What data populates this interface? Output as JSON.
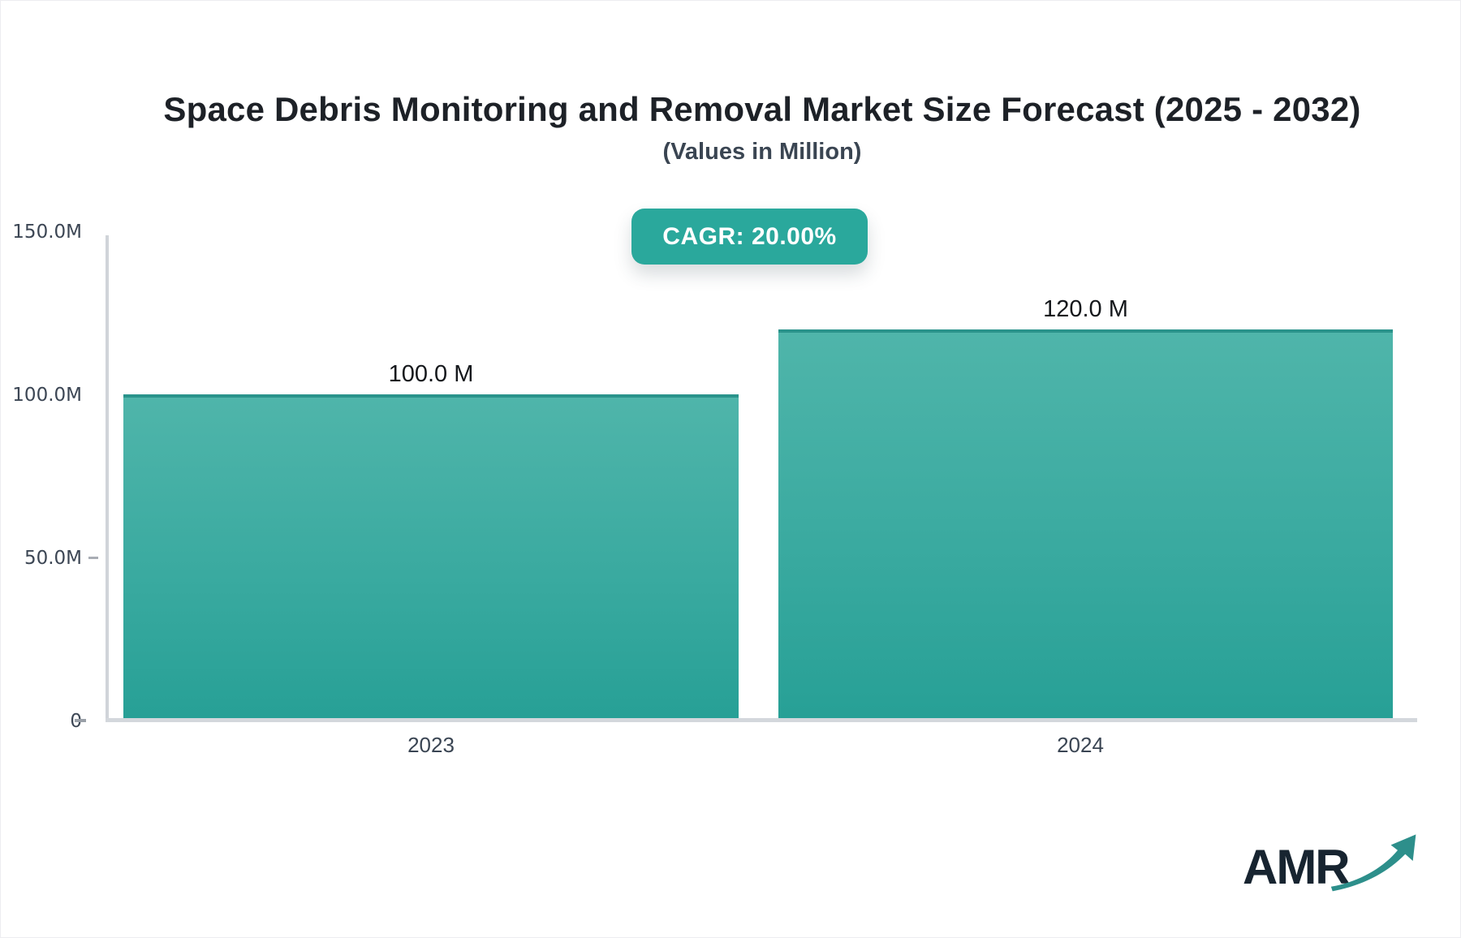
{
  "page": {
    "badge_label": "CAGR: 20.00%",
    "logo_text": "AMR"
  },
  "chart_data": {
    "type": "bar",
    "title": "Space Debris Monitoring and Removal Market Size Forecast (2025 - 2032)",
    "subtitle": "(Values in Million)",
    "categories": [
      "2023",
      "2024"
    ],
    "values": [
      100.0,
      120.0
    ],
    "bar_value_labels": [
      "100.0 M",
      "120.0 M"
    ],
    "unit": "Million",
    "cagr_percent": "20.00%",
    "ylim": [
      0,
      150
    ],
    "y_tick_values": [
      150,
      100,
      50,
      0
    ],
    "y_tick_labels": [
      "150.0M",
      "100.0M",
      "50.0M",
      "0"
    ],
    "xlabel": "",
    "ylabel": "",
    "grid": false,
    "legend": false,
    "colors": {
      "bar_gradient_top": "#4fb5aa",
      "bar_gradient_bottom": "#27a096",
      "bar_cap": "#2a938b",
      "badge_background": "#2aa89c",
      "badge_text": "#ffffff",
      "axis_line": "#d0d4d9",
      "title_text": "#1d2127",
      "axis_text": "#3c4654",
      "logo_navy": "#172430",
      "logo_teal": "#2d8f8b"
    }
  }
}
